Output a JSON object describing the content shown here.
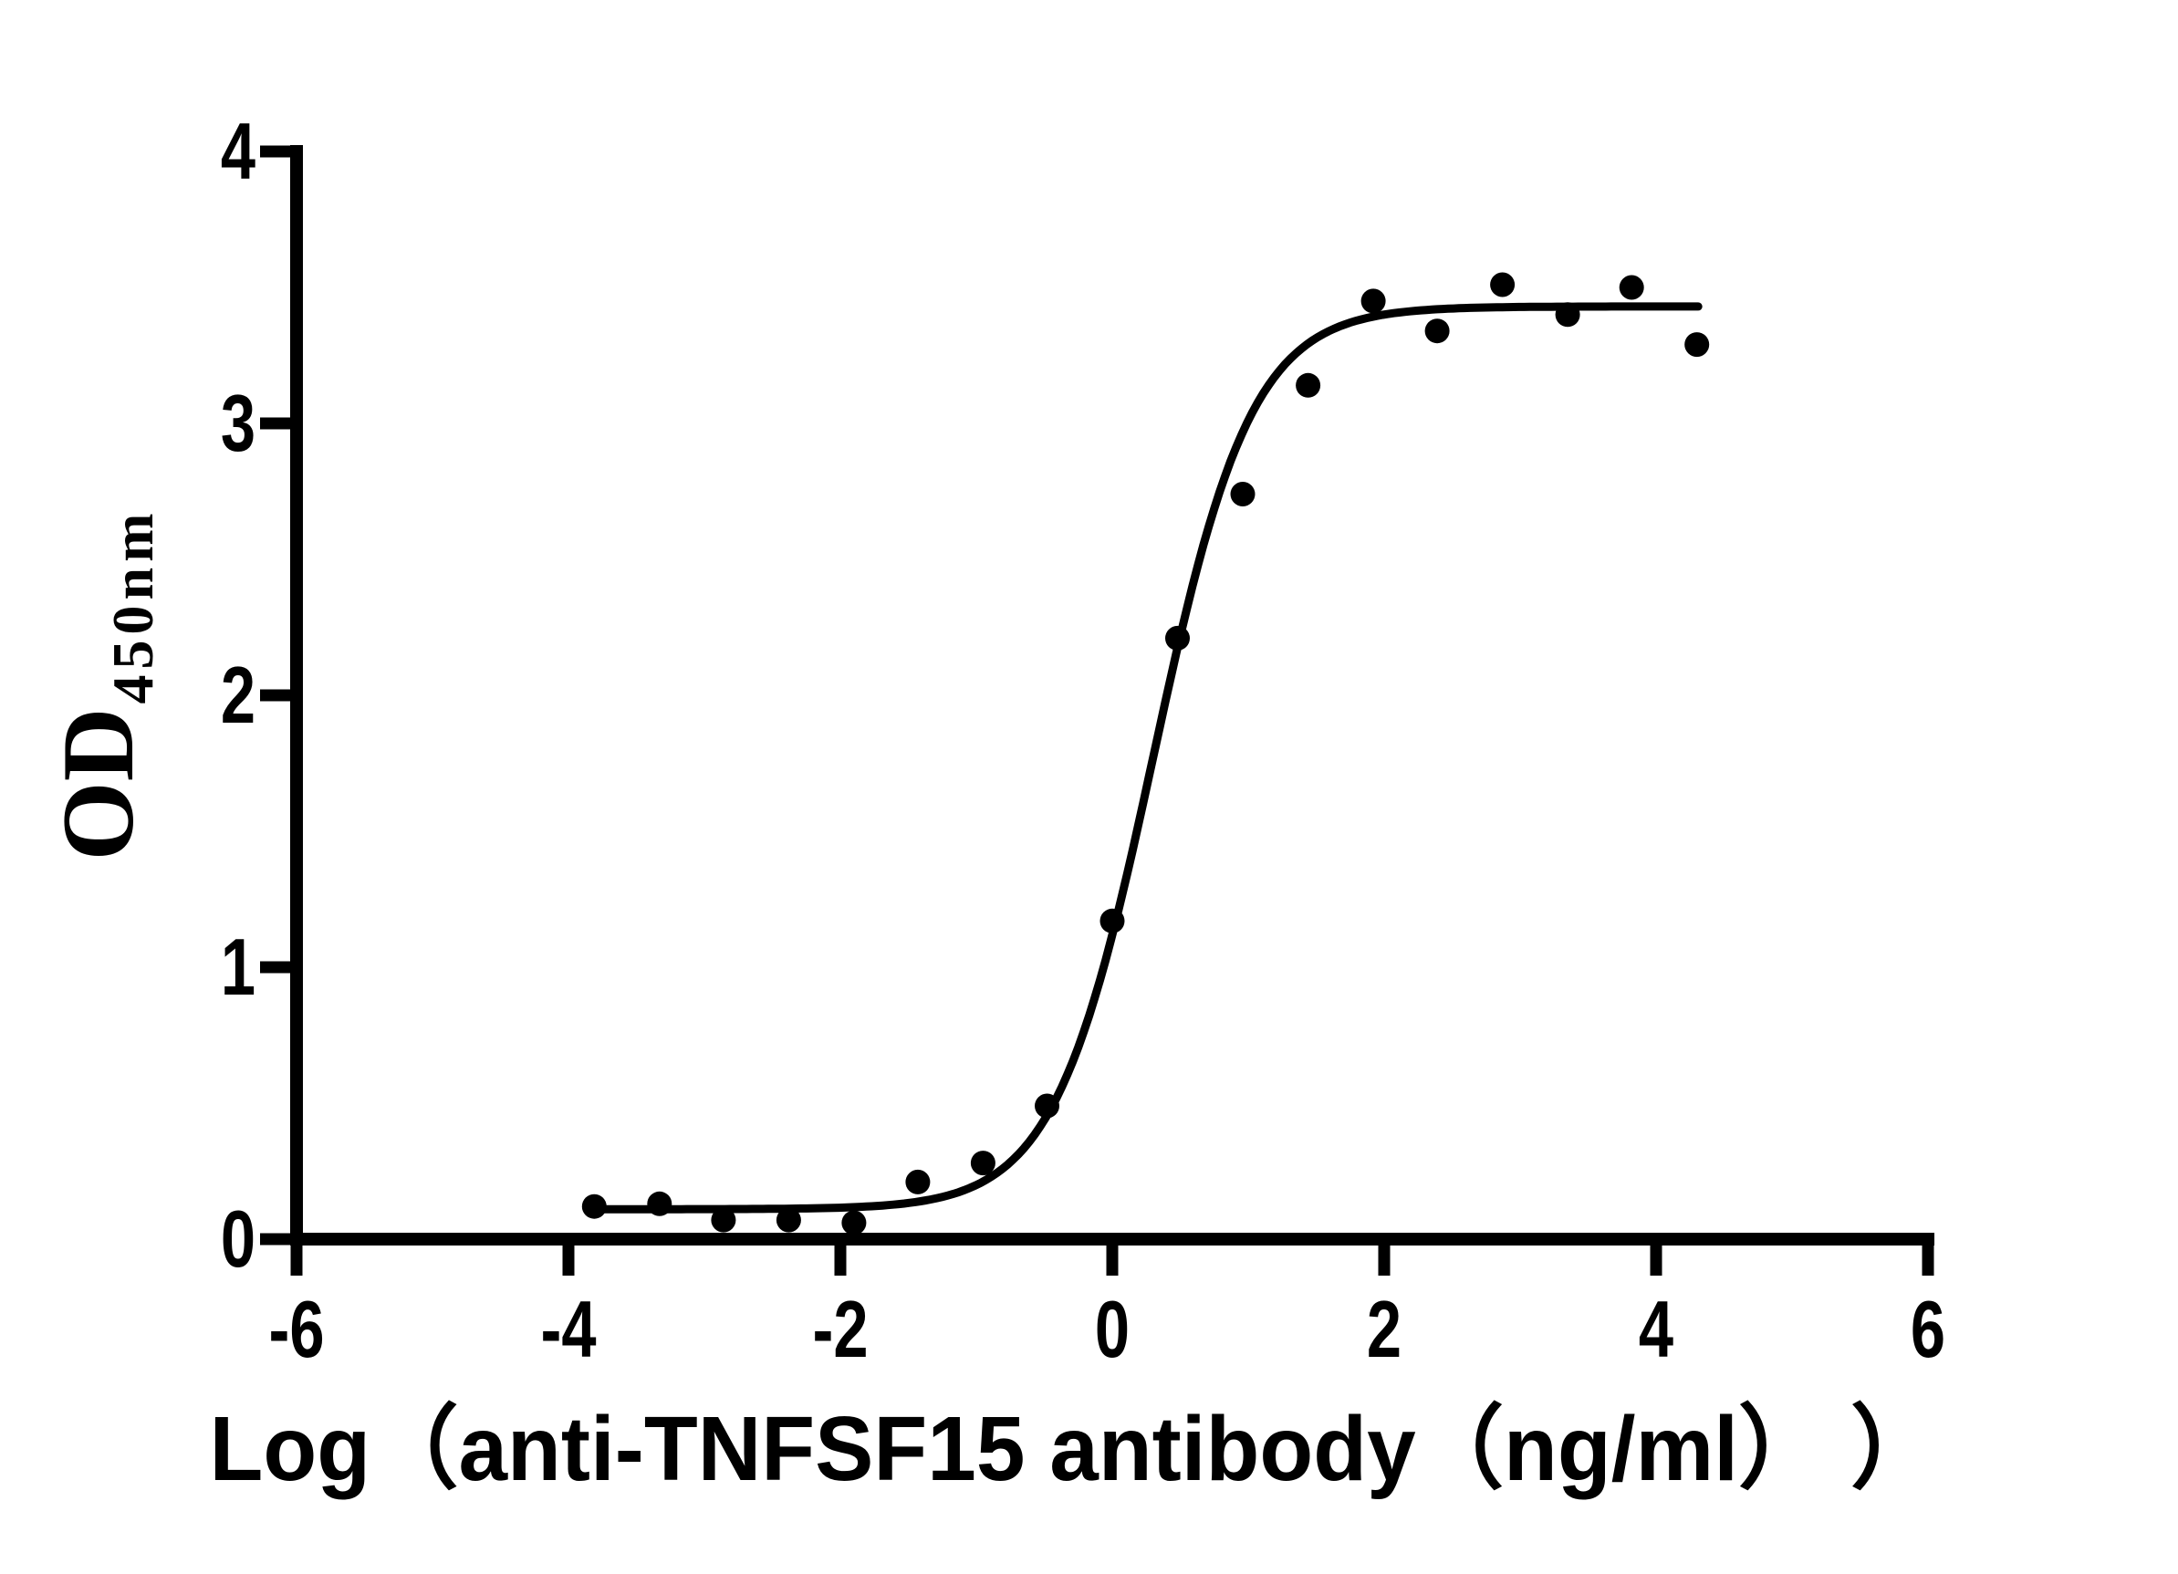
{
  "figure": {
    "background": "#ffffff",
    "ink": "#000000"
  },
  "chart_data": {
    "type": "scatter",
    "title": "",
    "xlabel": "Log（anti-TNFSF15 antibody（ng/ml） ）",
    "ylabel": "OD450nm",
    "ylabel_main": "OD",
    "ylabel_sub": "450nm",
    "xlim": [
      -6,
      6
    ],
    "ylim": [
      0,
      4
    ],
    "x_ticks": [
      -6,
      -4,
      -2,
      0,
      2,
      4,
      6
    ],
    "y_ticks": [
      0,
      1,
      2,
      3,
      4
    ],
    "grid": false,
    "legend": "none",
    "marker": "filled-circle",
    "marker_color": "#000000",
    "curve_color": "#000000",
    "points": [
      {
        "x": -3.81,
        "y": 0.12
      },
      {
        "x": -3.33,
        "y": 0.13
      },
      {
        "x": -2.86,
        "y": 0.07
      },
      {
        "x": -2.38,
        "y": 0.07
      },
      {
        "x": -1.9,
        "y": 0.06
      },
      {
        "x": -1.43,
        "y": 0.21
      },
      {
        "x": -0.95,
        "y": 0.28
      },
      {
        "x": -0.48,
        "y": 0.49
      },
      {
        "x": 0.0,
        "y": 1.17
      },
      {
        "x": 0.48,
        "y": 2.21
      },
      {
        "x": 0.96,
        "y": 2.74
      },
      {
        "x": 1.44,
        "y": 3.14
      },
      {
        "x": 1.92,
        "y": 3.45
      },
      {
        "x": 2.39,
        "y": 3.34
      },
      {
        "x": 2.87,
        "y": 3.51
      },
      {
        "x": 3.35,
        "y": 3.4
      },
      {
        "x": 3.82,
        "y": 3.5
      },
      {
        "x": 4.3,
        "y": 3.29
      }
    ],
    "fit_curve": {
      "model": "4PL sigmoid",
      "bottom": 0.11,
      "top": 3.43,
      "log_ec50": 0.3,
      "hill_slope": 1.2,
      "x_start": -3.81,
      "x_end": 4.33
    }
  }
}
